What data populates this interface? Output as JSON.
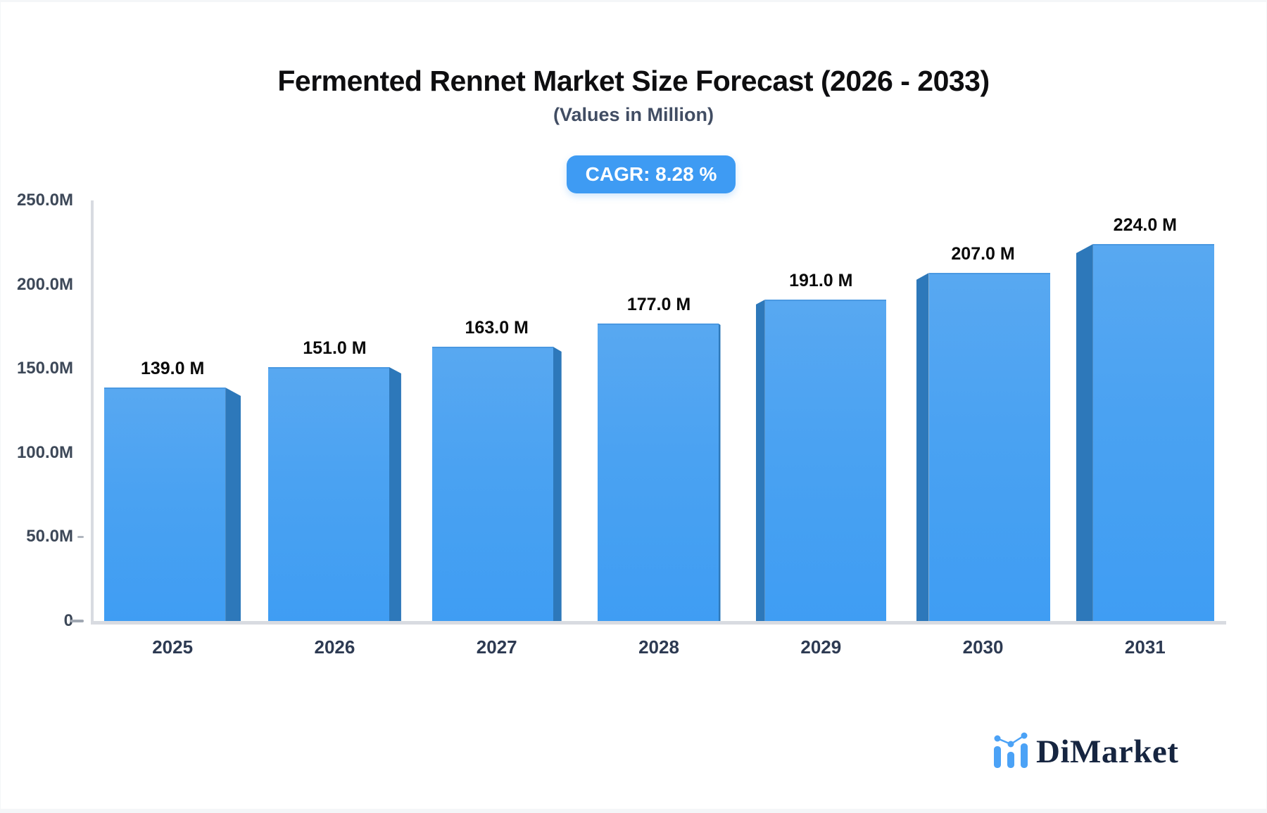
{
  "header": {
    "title": "Fermented Rennet Market Size Forecast (2026 - 2033)",
    "subtitle": "(Values in Million)",
    "cagr_label": "CAGR: 8.28 %"
  },
  "watermark": {
    "brand": "DiMarket",
    "icon": "bar-chart-logo-icon",
    "icon_color": "#4BA2F6",
    "text_color": "#162540"
  },
  "chart_data": {
    "type": "bar",
    "title": "Fermented Rennet Market Size Forecast (2026 - 2033)",
    "subtitle": "(Values in Million)",
    "cagr_pct": 8.28,
    "unit": "Million",
    "categories": [
      "2025",
      "2026",
      "2027",
      "2028",
      "2029",
      "2030",
      "2031"
    ],
    "values": [
      139,
      151,
      163,
      177,
      191,
      207,
      224
    ],
    "value_labels": [
      "139.0 M",
      "151.0 M",
      "163.0 M",
      "177.0 M",
      "191.0 M",
      "207.0 M",
      "224.0 M"
    ],
    "xlabel": "",
    "ylabel": "",
    "ylim": [
      0,
      250
    ],
    "yticks": [
      0,
      50,
      100,
      150,
      200,
      250
    ],
    "ytick_labels": [
      "0",
      "50.0M",
      "100.0M",
      "150.0M",
      "200.0M",
      "250.0M"
    ],
    "grid": false,
    "legend": false,
    "bar_face_color": "#459EF2",
    "bar_side_color": "#2D78BA",
    "axis_color": "#D8DBE1",
    "badge_color": "#3E9BF3"
  }
}
